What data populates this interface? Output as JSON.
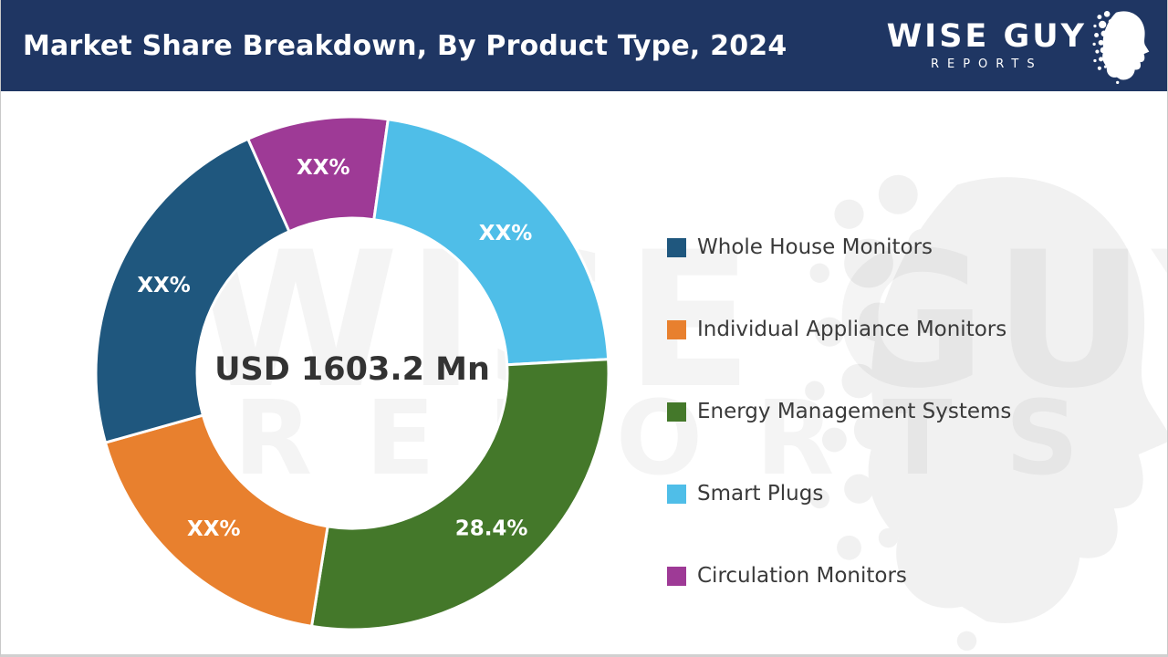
{
  "header": {
    "title": "Market Share Breakdown, By Product Type, 2024",
    "background": "#1F3663",
    "logo": {
      "line1": "WISE GUY",
      "line2": "REPORTS"
    }
  },
  "watermark": {
    "line1": "WISE GUY",
    "line2": "REPORTS"
  },
  "chart_data": {
    "type": "pie",
    "subtype": "donut",
    "title": "Market Share Breakdown, By Product Type, 2024",
    "center_label": "USD 1603.2 Mn",
    "start_angle_deg": 336,
    "series": [
      {
        "name": "Circulation Monitors",
        "value_pct": 8.9,
        "label": "XX%",
        "color": "#9E3A96"
      },
      {
        "name": "Smart Plugs",
        "value_pct": 21.9,
        "label": "XX%",
        "color": "#4FBEE8"
      },
      {
        "name": "Energy Management Systems",
        "value_pct": 28.4,
        "label": "28.4%",
        "color": "#44782A"
      },
      {
        "name": "Individual Appliance Monitors",
        "value_pct": 18.1,
        "label": "XX%",
        "color": "#E8802E"
      },
      {
        "name": "Whole House Monitors",
        "value_pct": 22.7,
        "label": "XX%",
        "color": "#1F577E"
      }
    ],
    "legend": [
      {
        "label": "Whole House Monitors",
        "color": "#1F577E"
      },
      {
        "label": "Individual Appliance Monitors",
        "color": "#E8802E"
      },
      {
        "label": "Energy Management Systems",
        "color": "#44782A"
      },
      {
        "label": "Smart Plugs",
        "color": "#4FBEE8"
      },
      {
        "label": "Circulation Monitors",
        "color": "#9E3A96"
      }
    ],
    "legend_position": "right"
  }
}
